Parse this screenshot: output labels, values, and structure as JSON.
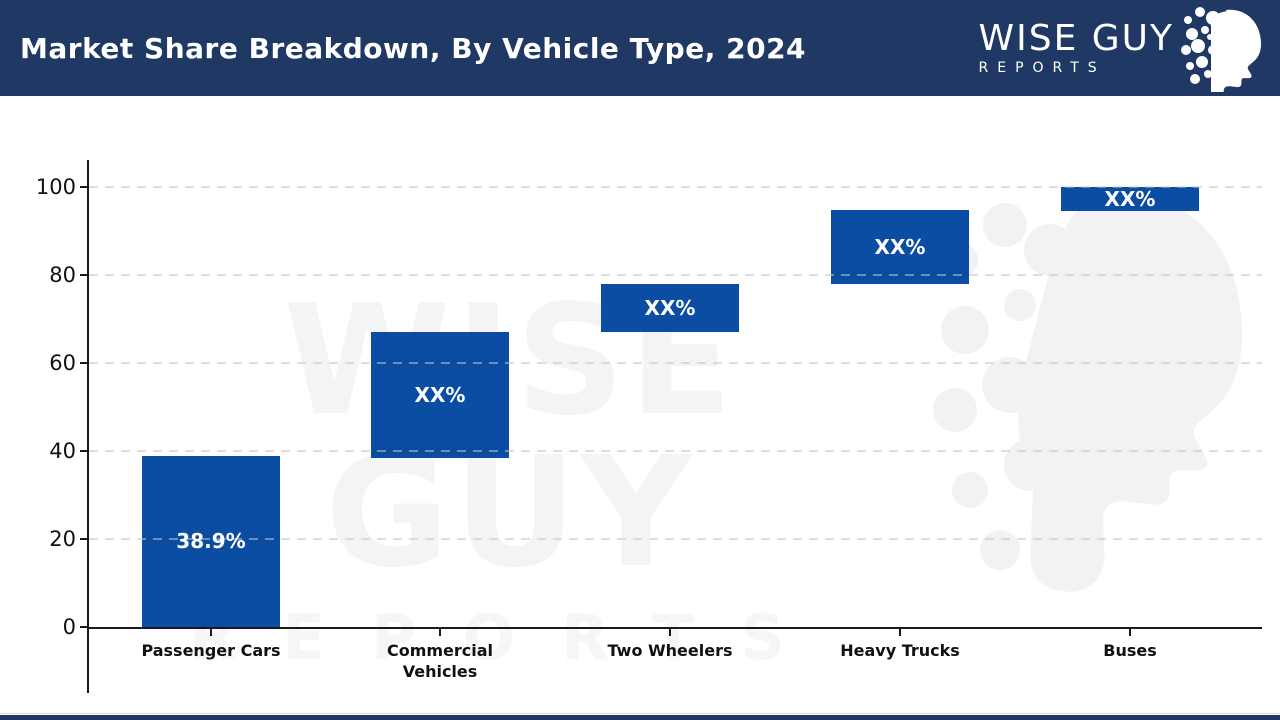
{
  "header": {
    "title": "Market Share Breakdown, By Vehicle Type, 2024",
    "bg_color": "#1f3864",
    "logo": {
      "line1": "WISE GUY",
      "line2": "REPORTS"
    }
  },
  "watermark": {
    "line1": "WISE GUY",
    "line2": "REPORTS"
  },
  "footer": {
    "bar_color": "#1f3864"
  },
  "chart_data": {
    "type": "bar",
    "subtype": "waterfall-floating-bars",
    "title": "Market Share Breakdown, By Vehicle Type, 2024",
    "categories": [
      "Passenger Cars",
      "Commercial\nVehicles",
      "Two Wheelers",
      "Heavy Trucks",
      "Buses"
    ],
    "segments": [
      {
        "category": "Passenger Cars",
        "start": 0,
        "end": 38.9,
        "label": "38.9%"
      },
      {
        "category": "Commercial\nVehicles",
        "start": 38.5,
        "end": 67.0,
        "label": "XX%"
      },
      {
        "category": "Two Wheelers",
        "start": 67.0,
        "end": 78.0,
        "label": "XX%"
      },
      {
        "category": "Heavy Trucks",
        "start": 78.0,
        "end": 94.8,
        "label": "XX%"
      },
      {
        "category": "Buses",
        "start": 94.5,
        "end": 100.0,
        "label": "XX%"
      }
    ],
    "bar_color": "#0b4da2",
    "bar_label_color": "#ffffff",
    "yticks": [
      0,
      20,
      40,
      60,
      80,
      100
    ],
    "ylim": [
      0,
      106
    ],
    "xlabel": "",
    "ylabel": "",
    "grid": "horizontal-dashed",
    "gridline_color": "#dcdcdc",
    "legend": "none"
  }
}
